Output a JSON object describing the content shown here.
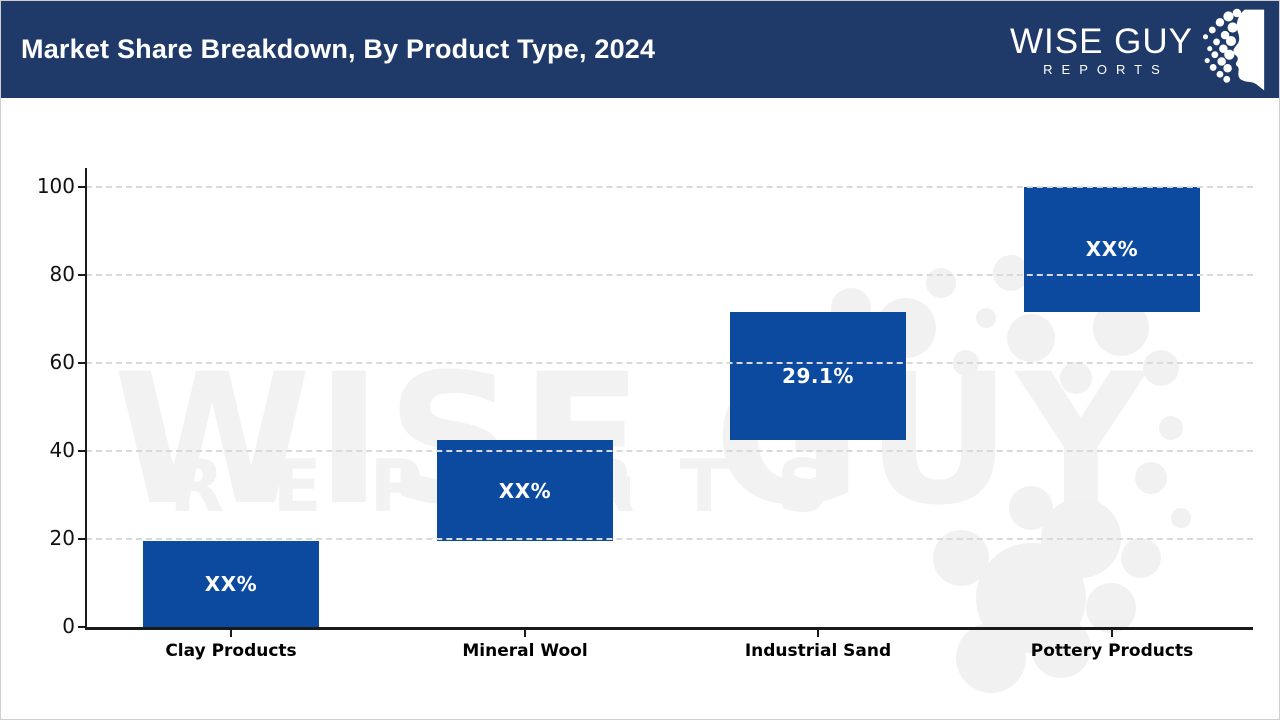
{
  "header": {
    "title": "Market Share Breakdown, By Product Type, 2024",
    "bg_color": "#1f3a68",
    "logo": {
      "line1": "WISE GUY",
      "line2": "REPORTS"
    }
  },
  "watermark": {
    "line1": "WISE GUY",
    "line2": "REPORTS"
  },
  "chart_data": {
    "type": "bar",
    "subtype": "waterfall",
    "title": "Market Share Breakdown, By Product Type, 2024",
    "categories": [
      "Clay Products",
      "Mineral Wool",
      "Industrial Sand",
      "Pottery Products"
    ],
    "segments": [
      {
        "category": "Clay Products",
        "start": 0,
        "end": 19.5,
        "label": "XX%"
      },
      {
        "category": "Mineral Wool",
        "start": 19.5,
        "end": 42.5,
        "label": "XX%"
      },
      {
        "category": "Industrial Sand",
        "start": 42.5,
        "end": 71.6,
        "label": "29.1%"
      },
      {
        "category": "Pottery Products",
        "start": 71.6,
        "end": 100,
        "label": "XX%"
      }
    ],
    "ylim": [
      0,
      100
    ],
    "yticks": [
      0,
      20,
      40,
      60,
      80,
      100
    ],
    "xlabel": "",
    "ylabel": "",
    "grid": "horizontal-dashed",
    "legend": "none",
    "bar_color": "#0c4aa0",
    "gridline_color": "#d9d9d9"
  }
}
